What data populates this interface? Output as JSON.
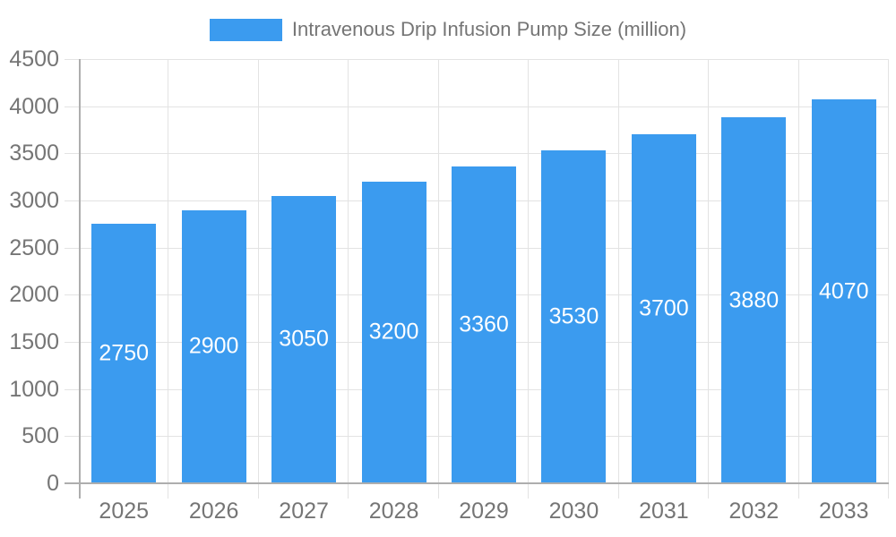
{
  "legend": {
    "label": "Intravenous Drip Infusion Pump Size (million)"
  },
  "chart_data": {
    "type": "bar",
    "title": "Intravenous Drip Infusion Pump Size (million)",
    "categories": [
      "2025",
      "2026",
      "2027",
      "2028",
      "2029",
      "2030",
      "2031",
      "2032",
      "2033"
    ],
    "values": [
      2750,
      2900,
      3050,
      3200,
      3360,
      3530,
      3700,
      3880,
      4070
    ],
    "xlabel": "",
    "ylabel": "",
    "ylim": [
      0,
      4500
    ],
    "yticks": [
      0,
      500,
      1000,
      1500,
      2000,
      2500,
      3000,
      3500,
      4000,
      4500
    ],
    "grid": true,
    "legend_position": "top-center",
    "bar_labels_inside": true,
    "colors": {
      "bar": "#3b9bef",
      "grid": "#e3e3e3",
      "axis": "#aeaeae",
      "axis_text": "#757575",
      "bar_label_text": "#ffffff",
      "background": "#ffffff"
    }
  }
}
